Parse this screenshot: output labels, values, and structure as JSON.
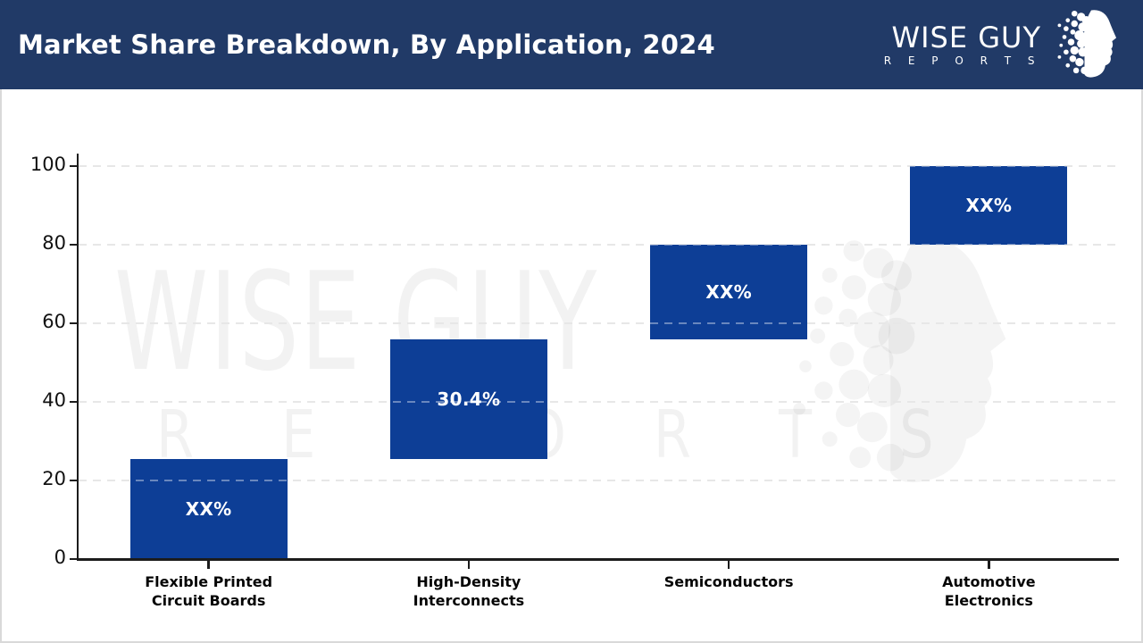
{
  "header": {
    "title": "Market Share Breakdown, By Application, 2024",
    "logo": {
      "name": "WISE GUY",
      "subname": "R E P O R T S"
    }
  },
  "watermark": {
    "line1": "WISE GUY",
    "line2": "R E P O R T S"
  },
  "colors": {
    "header_bg": "#213a67",
    "bar_fill": "#0d3e96",
    "axis": "#1c1c1c",
    "gridline": "#d9d9d9",
    "bar_label_text": "#ffffff"
  },
  "chart_data": {
    "type": "bar",
    "variant": "waterfall",
    "title": "Market Share Breakdown, By Application, 2024",
    "xlabel": "",
    "ylabel": "",
    "ylim": [
      0,
      103
    ],
    "grid": "horizontal-dashed",
    "legend": "none",
    "yticks": [
      "0",
      "20",
      "40",
      "60",
      "80",
      "100"
    ],
    "ytick_values": [
      0,
      20,
      40,
      60,
      80,
      100
    ],
    "categories": [
      "Flexible Printed\nCircuit Boards",
      "High-Density\nInterconnects",
      "Semiconductors",
      "Automotive\nElectronics"
    ],
    "segments": [
      {
        "category": "Flexible Printed Circuit Boards",
        "start": 0,
        "end": 25.5,
        "height": 25.5,
        "value_label": "XX%"
      },
      {
        "category": "High-Density Interconnects",
        "start": 25.5,
        "end": 55.9,
        "height": 30.4,
        "value_label": "30.4%"
      },
      {
        "category": "Semiconductors",
        "start": 55.9,
        "end": 79.9,
        "height": 24.0,
        "value_label": "XX%"
      },
      {
        "category": "Automotive Electronics",
        "start": 79.9,
        "end": 100,
        "height": 20.1,
        "value_label": "XX%"
      }
    ]
  }
}
